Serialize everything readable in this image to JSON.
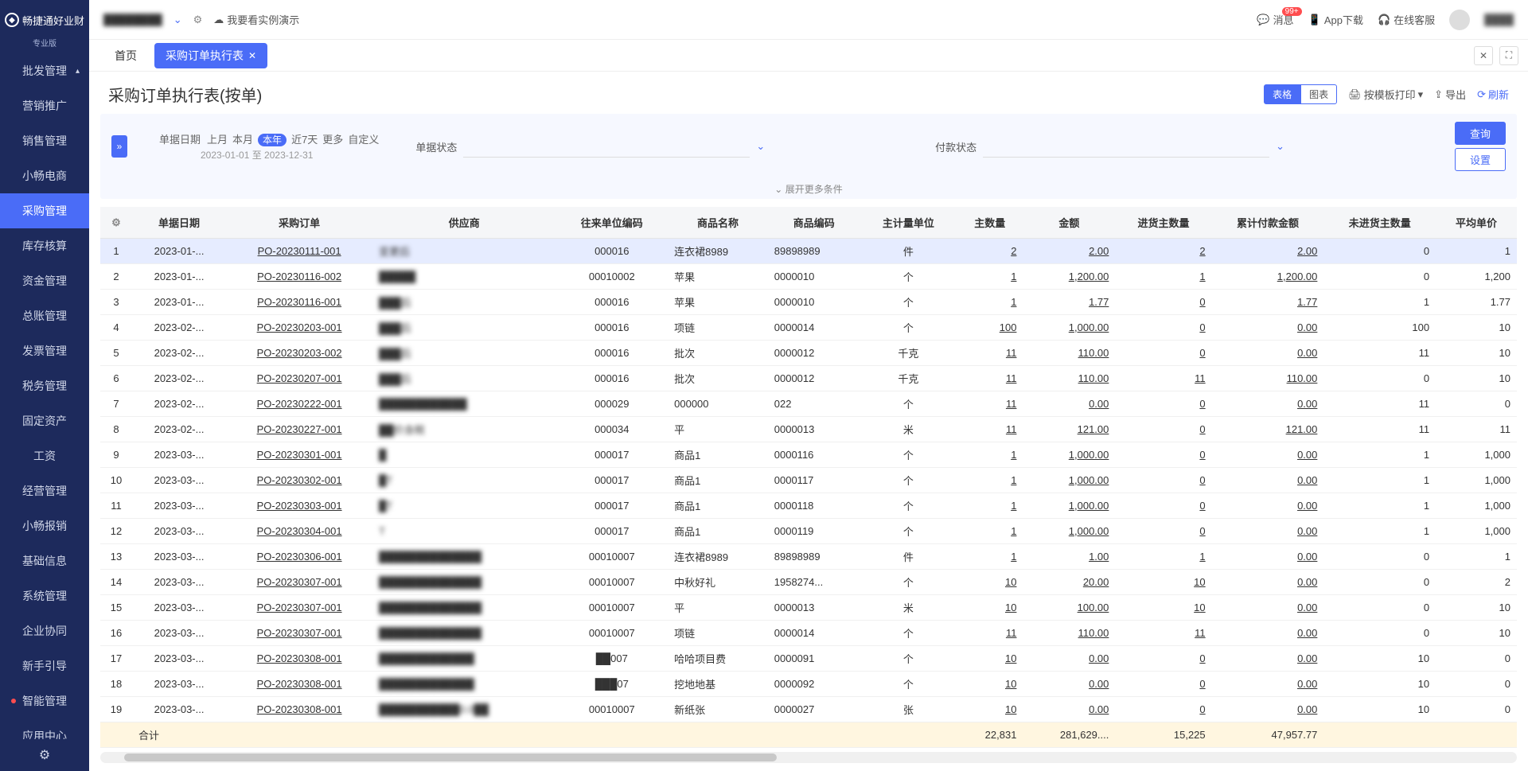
{
  "brand": {
    "name": "畅捷通好业财",
    "sub": "专业版"
  },
  "sidebar": {
    "items": [
      {
        "label": "批发管理",
        "expanded": true
      },
      {
        "label": "营销推广"
      },
      {
        "label": "销售管理"
      },
      {
        "label": "小畅电商"
      },
      {
        "label": "采购管理",
        "active": true
      },
      {
        "label": "库存核算"
      },
      {
        "label": "资金管理"
      },
      {
        "label": "总账管理"
      },
      {
        "label": "发票管理"
      },
      {
        "label": "税务管理"
      },
      {
        "label": "固定资产"
      },
      {
        "label": "工资"
      },
      {
        "label": "经营管理"
      },
      {
        "label": "小畅报销"
      },
      {
        "label": "基础信息"
      },
      {
        "label": "系统管理"
      },
      {
        "label": "企业协同"
      },
      {
        "label": "新手引导"
      },
      {
        "label": "智能管理",
        "dot": true
      },
      {
        "label": "应用中心"
      }
    ]
  },
  "topbar": {
    "org": "████████",
    "demo": "我要看实例演示",
    "msg": "消息",
    "msg_badge": "99+",
    "app": "App下载",
    "cs": "在线客服",
    "user": "████"
  },
  "tabs": {
    "home": "首页",
    "active": "采购订单执行表"
  },
  "page": {
    "title": "采购订单执行表(按单)",
    "view_table": "表格",
    "view_chart": "图表",
    "print": "按模板打印",
    "export": "导出",
    "refresh": "刷新"
  },
  "filter": {
    "date_label": "单据日期",
    "opts": [
      "上月",
      "本月",
      "本年",
      "近7天",
      "更多",
      "自定义"
    ],
    "sel": "本年",
    "range": "2023-01-01 至 2023-12-31",
    "status": "单据状态",
    "pay": "付款状态",
    "query": "查询",
    "config": "设置",
    "expand": "展开更多条件"
  },
  "table": {
    "cols": [
      "单据日期",
      "采购订单",
      "供应商",
      "往来单位编码",
      "商品名称",
      "商品编码",
      "主计量单位",
      "主数量",
      "金额",
      "进货主数量",
      "累计付款金额",
      "未进货主数量",
      "平均单价"
    ],
    "rows": [
      {
        "d": "2023-01-...",
        "po": "PO-20230111-001",
        "sup": "变更后",
        "suc": "000016",
        "pn": "连衣裙8989",
        "pc": "89898989",
        "u": "件",
        "q": "2",
        "amt": "2.00",
        "inq": "2",
        "paid": "2.00",
        "unq": "0",
        "avg": "1",
        "hl": true,
        "ul": true
      },
      {
        "d": "2023-01-...",
        "po": "PO-20230116-002",
        "sup": "█████",
        "suc": "00010002",
        "pn": "苹果",
        "pc": "0000010",
        "u": "个",
        "q": "1",
        "amt": "1,200.00",
        "inq": "1",
        "paid": "1,200.00",
        "unq": "0",
        "avg": "1,200",
        "ul": true
      },
      {
        "d": "2023-01-...",
        "po": "PO-20230116-001",
        "sup": "███后",
        "suc": "000016",
        "pn": "苹果",
        "pc": "0000010",
        "u": "个",
        "q": "1",
        "amt": "1.77",
        "inq": "0",
        "paid": "1.77",
        "unq": "1",
        "avg": "1.77",
        "ul": true
      },
      {
        "d": "2023-02-...",
        "po": "PO-20230203-001",
        "sup": "███后",
        "suc": "000016",
        "pn": "项链",
        "pc": "0000014",
        "u": "个",
        "q": "100",
        "amt": "1,000.00",
        "inq": "0",
        "paid": "0.00",
        "unq": "100",
        "avg": "10",
        "ul": true
      },
      {
        "d": "2023-02-...",
        "po": "PO-20230203-002",
        "sup": "███后",
        "suc": "000016",
        "pn": "批次",
        "pc": "0000012",
        "u": "千克",
        "q": "11",
        "amt": "110.00",
        "inq": "0",
        "paid": "0.00",
        "unq": "11",
        "avg": "10",
        "ul": true
      },
      {
        "d": "2023-02-...",
        "po": "PO-20230207-001",
        "sup": "███后",
        "suc": "000016",
        "pn": "批次",
        "pc": "0000012",
        "u": "千克",
        "q": "11",
        "amt": "110.00",
        "inq": "11",
        "paid": "110.00",
        "unq": "0",
        "avg": "10",
        "ul": true
      },
      {
        "d": "2023-02-...",
        "po": "PO-20230222-001",
        "sup": "████████████",
        "suc": "000029",
        "pn": "000000",
        "pc": "022",
        "u": "个",
        "q": "11",
        "amt": "0.00",
        "inq": "0",
        "paid": "0.00",
        "unq": "11",
        "avg": "0",
        "ul": true
      },
      {
        "d": "2023-02-...",
        "po": "PO-20230227-001",
        "sup": "██价含税",
        "suc": "000034",
        "pn": "平",
        "pc": "0000013",
        "u": "米",
        "q": "11",
        "amt": "121.00",
        "inq": "0",
        "paid": "121.00",
        "unq": "11",
        "avg": "11",
        "ul": true
      },
      {
        "d": "2023-03-...",
        "po": "PO-20230301-001",
        "sup": "█",
        "suc": "000017",
        "pn": "商品1",
        "pc": "0000116",
        "u": "个",
        "q": "1",
        "amt": "1,000.00",
        "inq": "0",
        "paid": "0.00",
        "unq": "1",
        "avg": "1,000",
        "ul": true
      },
      {
        "d": "2023-03-...",
        "po": "PO-20230302-001",
        "sup": "█T",
        "suc": "000017",
        "pn": "商品1",
        "pc": "0000117",
        "u": "个",
        "q": "1",
        "amt": "1,000.00",
        "inq": "0",
        "paid": "0.00",
        "unq": "1",
        "avg": "1,000",
        "ul": true
      },
      {
        "d": "2023-03-...",
        "po": "PO-20230303-001",
        "sup": "█T",
        "suc": "000017",
        "pn": "商品1",
        "pc": "0000118",
        "u": "个",
        "q": "1",
        "amt": "1,000.00",
        "inq": "0",
        "paid": "0.00",
        "unq": "1",
        "avg": "1,000",
        "ul": true
      },
      {
        "d": "2023-03-...",
        "po": "PO-20230304-001",
        "sup": "T",
        "suc": "000017",
        "pn": "商品1",
        "pc": "0000119",
        "u": "个",
        "q": "1",
        "amt": "1,000.00",
        "inq": "0",
        "paid": "0.00",
        "unq": "1",
        "avg": "1,000",
        "ul": true
      },
      {
        "d": "2023-03-...",
        "po": "PO-20230306-001",
        "sup": "██████████████",
        "suc": "00010007",
        "pn": "连衣裙8989",
        "pc": "89898989",
        "u": "件",
        "q": "1",
        "amt": "1.00",
        "inq": "1",
        "paid": "0.00",
        "unq": "0",
        "avg": "1",
        "ul": true
      },
      {
        "d": "2023-03-...",
        "po": "PO-20230307-001",
        "sup": "██████████████",
        "suc": "00010007",
        "pn": "中秋好礼",
        "pc": "1958274...",
        "u": "个",
        "q": "10",
        "amt": "20.00",
        "inq": "10",
        "paid": "0.00",
        "unq": "0",
        "avg": "2",
        "ul": true
      },
      {
        "d": "2023-03-...",
        "po": "PO-20230307-001",
        "sup": "██████████████",
        "suc": "00010007",
        "pn": "平",
        "pc": "0000013",
        "u": "米",
        "q": "10",
        "amt": "100.00",
        "inq": "10",
        "paid": "0.00",
        "unq": "0",
        "avg": "10",
        "ul": true
      },
      {
        "d": "2023-03-...",
        "po": "PO-20230307-001",
        "sup": "██████████████",
        "suc": "00010007",
        "pn": "项链",
        "pc": "0000014",
        "u": "个",
        "q": "11",
        "amt": "110.00",
        "inq": "11",
        "paid": "0.00",
        "unq": "0",
        "avg": "10",
        "ul": true
      },
      {
        "d": "2023-03-...",
        "po": "PO-20230308-001",
        "sup": "█████████████",
        "suc": "██007",
        "pn": "哈哈项目费",
        "pc": "0000091",
        "u": "个",
        "q": "10",
        "amt": "0.00",
        "inq": "0",
        "paid": "0.00",
        "unq": "10",
        "avg": "0",
        "ul": true
      },
      {
        "d": "2023-03-...",
        "po": "PO-20230308-001",
        "sup": "█████████████",
        "suc": "███07",
        "pn": "挖地地基",
        "pc": "0000092",
        "u": "个",
        "q": "10",
        "amt": "0.00",
        "inq": "0",
        "paid": "0.00",
        "unq": "10",
        "avg": "0",
        "ul": true
      },
      {
        "d": "2023-03-...",
        "po": "PO-20230308-001",
        "sup": "███████████0.0██",
        "suc": "00010007",
        "pn": "新纸张",
        "pc": "0000027",
        "u": "张",
        "q": "10",
        "amt": "0.00",
        "inq": "0",
        "paid": "0.00",
        "unq": "10",
        "avg": "0",
        "ul": true
      }
    ],
    "total_label": "合计",
    "totals": {
      "q": "22,831",
      "amt": "281,629....",
      "inq": "15,225",
      "paid": "47,957.77"
    }
  }
}
